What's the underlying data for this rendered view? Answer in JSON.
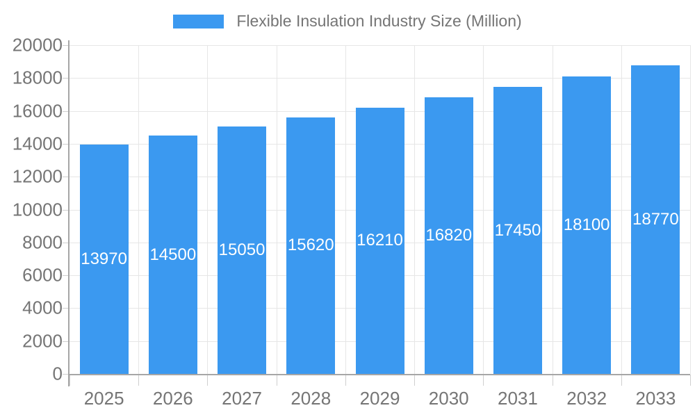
{
  "legend": {
    "label": "Flexible Insulation Industry Size (Million)"
  },
  "chart_data": {
    "type": "bar",
    "title": "Flexible Insulation Industry Size (Million)",
    "series_name": "Flexible Insulation Industry Size (Million)",
    "categories": [
      "2025",
      "2026",
      "2027",
      "2028",
      "2029",
      "2030",
      "2031",
      "2032",
      "2033"
    ],
    "values": [
      13970,
      14500,
      15050,
      15620,
      16210,
      16820,
      17450,
      18100,
      18770
    ],
    "bar_labels": [
      "13970",
      "14500",
      "15050",
      "15620",
      "16210",
      "16820",
      "17450",
      "18100",
      "18770"
    ],
    "xlabel": "",
    "ylabel": "",
    "ylim": [
      0,
      20000
    ],
    "ytick_step": 2000,
    "ytick_labels": [
      "0",
      "2000",
      "4000",
      "6000",
      "8000",
      "10000",
      "12000",
      "14000",
      "16000",
      "18000",
      "20000"
    ],
    "grid": true,
    "legend_position": "top"
  },
  "colors": {
    "bar": "#3B99F0",
    "bar_label_text": "#FFFFFF",
    "axis_text": "#757575",
    "gridline": "#E6E6E6",
    "axis_line": "#A6A6A6",
    "tick": "#CFCFCF",
    "background": "#FFFFFF"
  }
}
